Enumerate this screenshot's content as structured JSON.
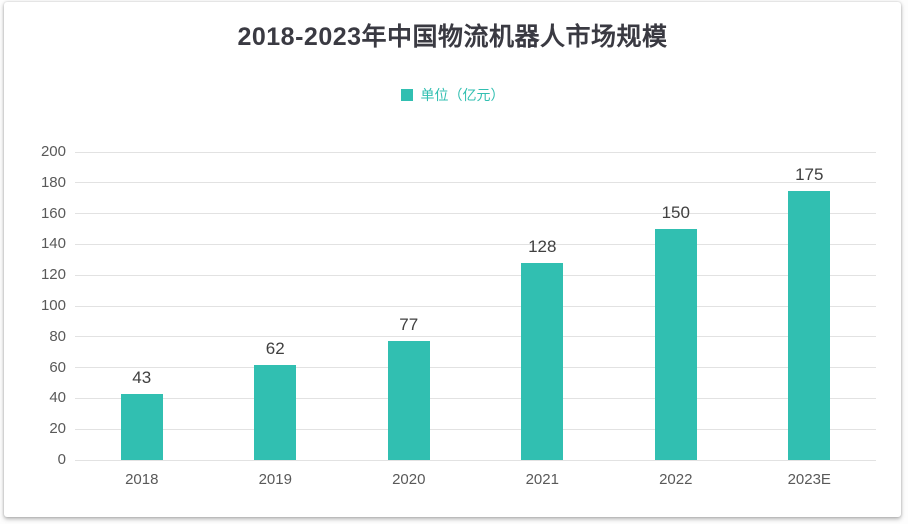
{
  "chart": {
    "title": "2018-2023年中国物流机器人市场规模",
    "legend_label": "单位（亿元）"
  },
  "chart_data": {
    "type": "bar",
    "title": "2018-2023年中国物流机器人市场规模",
    "legend": [
      "单位（亿元）"
    ],
    "legend_position": "top-center",
    "categories": [
      "2018",
      "2019",
      "2020",
      "2021",
      "2022",
      "2023E"
    ],
    "values": [
      43,
      62,
      77,
      128,
      150,
      175
    ],
    "xlabel": "",
    "ylabel": "",
    "ylim": [
      0,
      200
    ],
    "ytick_step": 20,
    "grid": true,
    "colors": {
      "bar": "#31BFB1",
      "legend_text": "#31BFB1",
      "title_text": "#3A3A42",
      "axis_text": "#595959",
      "value_label_text": "#404040",
      "gridline": "#E2E2E2"
    }
  }
}
